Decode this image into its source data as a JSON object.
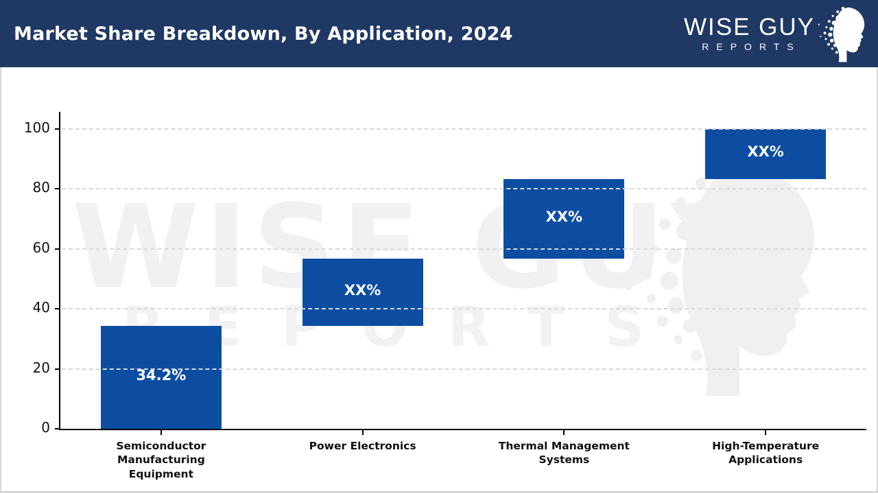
{
  "header": {
    "title": "Market Share Breakdown, By Application, 2024",
    "logo": {
      "line1": "WISE GUY",
      "line2": "REPORTS"
    },
    "bg_color": "#1f3864"
  },
  "watermark": {
    "line1": "WISE GUY",
    "line2": "REPORTS"
  },
  "chart_data": {
    "type": "bar",
    "subtype": "waterfall",
    "title": "Market Share Breakdown, By Application, 2024",
    "categories": [
      "Semiconductor Manufacturing Equipment",
      "Power Electronics",
      "Thermal Management Systems",
      "High-Temperature Applications"
    ],
    "category_lines": [
      [
        "Semiconductor",
        "Manufacturing",
        "Equipment"
      ],
      [
        "Power Electronics"
      ],
      [
        "Thermal Management",
        "Systems"
      ],
      [
        "High-Temperature",
        "Applications"
      ]
    ],
    "series": [
      {
        "name": "Market Share",
        "segments": [
          {
            "category": "Semiconductor Manufacturing Equipment",
            "start": 0,
            "end": 34.2,
            "label": "34.2%"
          },
          {
            "category": "Power Electronics",
            "start": 34.2,
            "end": 56.8,
            "label": "XX%"
          },
          {
            "category": "Thermal Management Systems",
            "start": 56.8,
            "end": 83.2,
            "label": "XX%"
          },
          {
            "category": "High-Temperature Applications",
            "start": 83.2,
            "end": 100,
            "label": "XX%"
          }
        ]
      }
    ],
    "xlabel": "",
    "ylabel": "",
    "ylim": [
      0,
      105.6
    ],
    "yticks": [
      0,
      20,
      40,
      60,
      80,
      100
    ],
    "grid": "horizontal-dashed",
    "legend": "none",
    "bar_color": "#0c4da2",
    "bar_label_color": "#ffffff",
    "grid_color": "#d9d9d9",
    "axis_color": "#000000"
  }
}
